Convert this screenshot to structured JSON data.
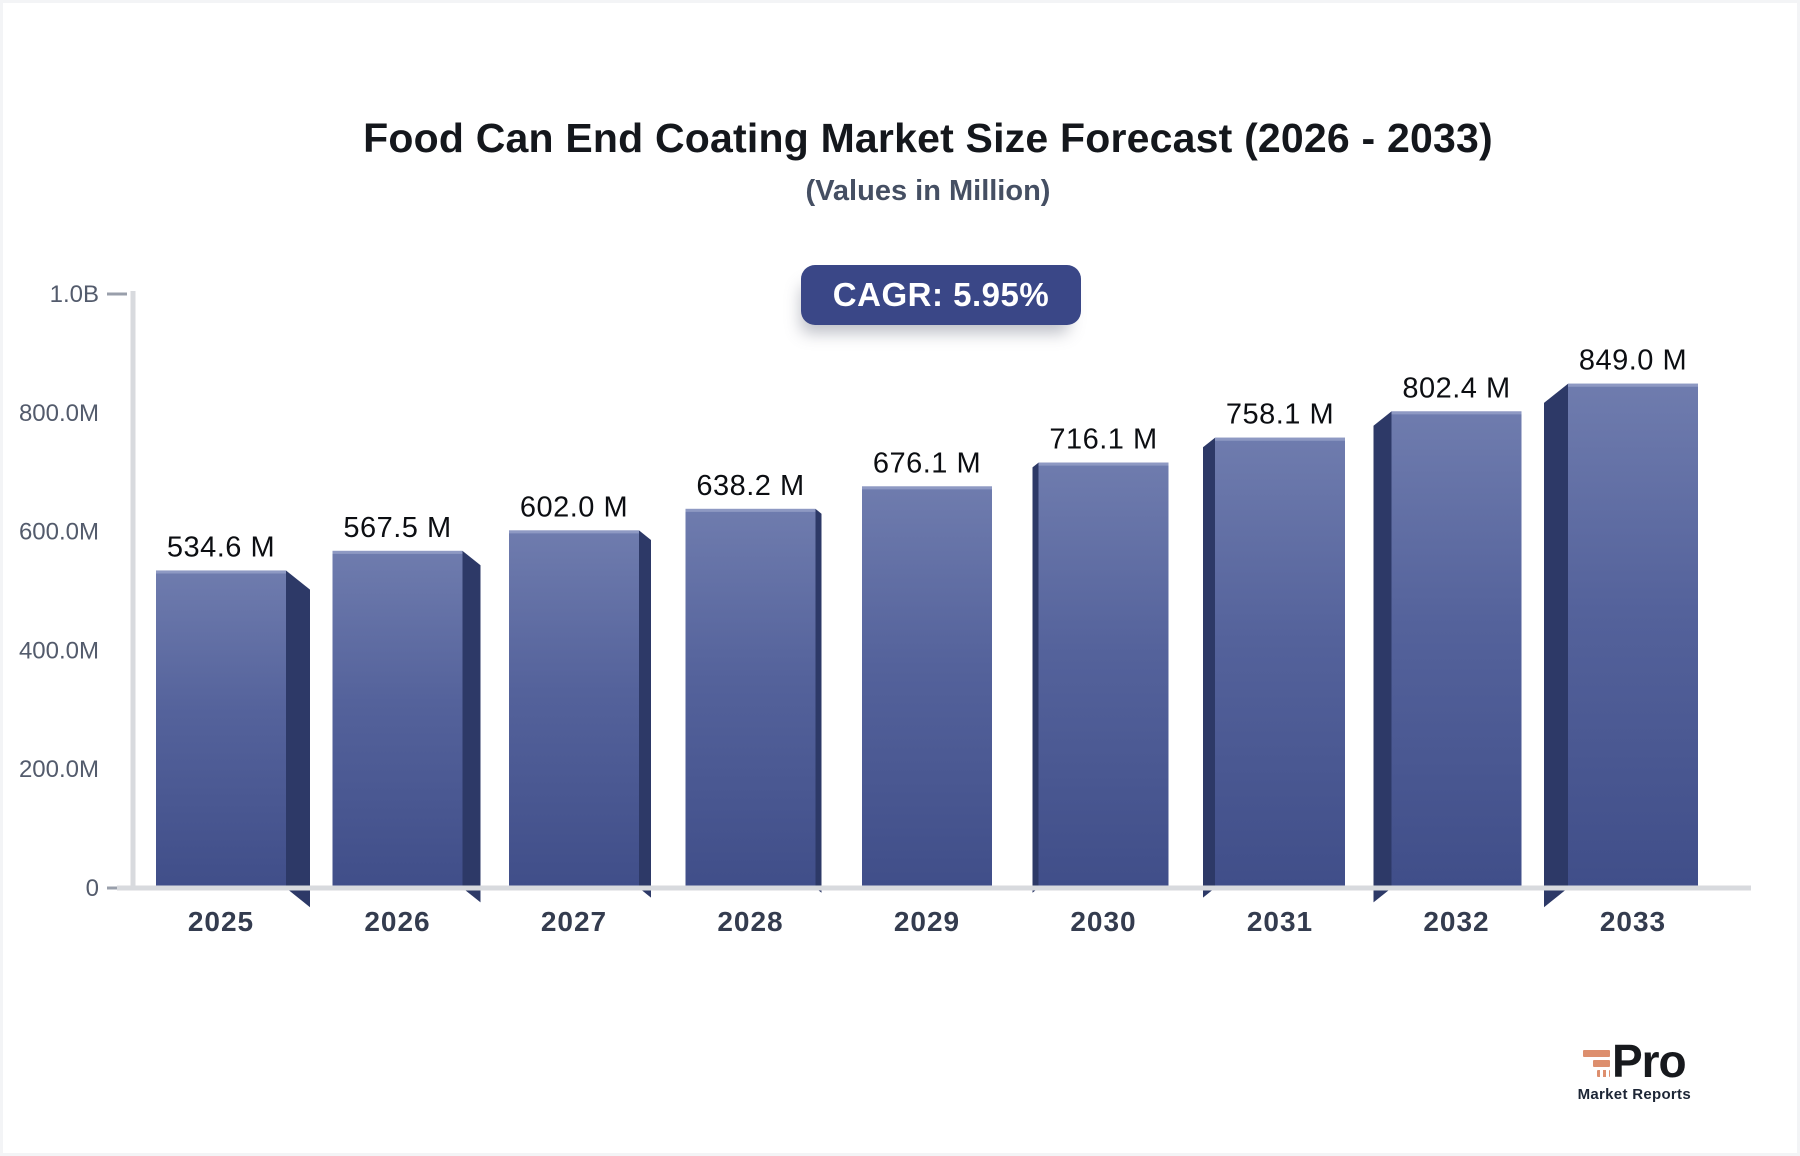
{
  "header": {
    "title": "Food Can End Coating Market Size Forecast (2026 - 2033)",
    "subtitle": "(Values in Million)"
  },
  "badge": {
    "label": "CAGR: 5.95%",
    "background": "#3a4787",
    "text_color": "#ffffff"
  },
  "chart_data": {
    "type": "bar",
    "title": "Food Can End Coating Market Size Forecast (2026 - 2033)",
    "subtitle": "(Values in Million)",
    "categories": [
      "2025",
      "2026",
      "2027",
      "2028",
      "2029",
      "2030",
      "2031",
      "2032",
      "2033"
    ],
    "values": [
      534.6,
      567.5,
      602.0,
      638.2,
      676.1,
      716.1,
      758.1,
      802.4,
      849.0
    ],
    "value_labels": [
      "534.6 M",
      "567.5 M",
      "602.0 M",
      "638.2 M",
      "676.1 M",
      "716.1 M",
      "758.1 M",
      "802.4 M",
      "849.0 M"
    ],
    "unit": "Million",
    "ylim": [
      0,
      1000
    ],
    "yticks": [
      {
        "value": 1000,
        "label": "1.0B",
        "dash": true
      },
      {
        "value": 800,
        "label": "800.0M",
        "dash": false
      },
      {
        "value": 600,
        "label": "600.0M",
        "dash": false
      },
      {
        "value": 400,
        "label": "400.0M",
        "dash": false
      },
      {
        "value": 200,
        "label": "200.0M",
        "dash": false
      },
      {
        "value": 0,
        "label": "0",
        "dash": true
      }
    ],
    "grid": false,
    "legend": false,
    "style": "3d-perspective-bars",
    "colors": {
      "bar_front_top": "#6f7cae",
      "bar_front_mid": "#54629b",
      "bar_front_bottom": "#404e89",
      "bar_side": "#2d3967",
      "bar_top_edge": "#8e99c3",
      "axis_line": "#d8dade",
      "tick_dash": "#999fab",
      "value_label": "#0c0e12",
      "year_label": "#343c4f",
      "ytick_label": "#535b6c"
    }
  },
  "logo": {
    "name": "Pro",
    "tagline": "Market Reports",
    "stripe_color": "#dd8f6e"
  }
}
